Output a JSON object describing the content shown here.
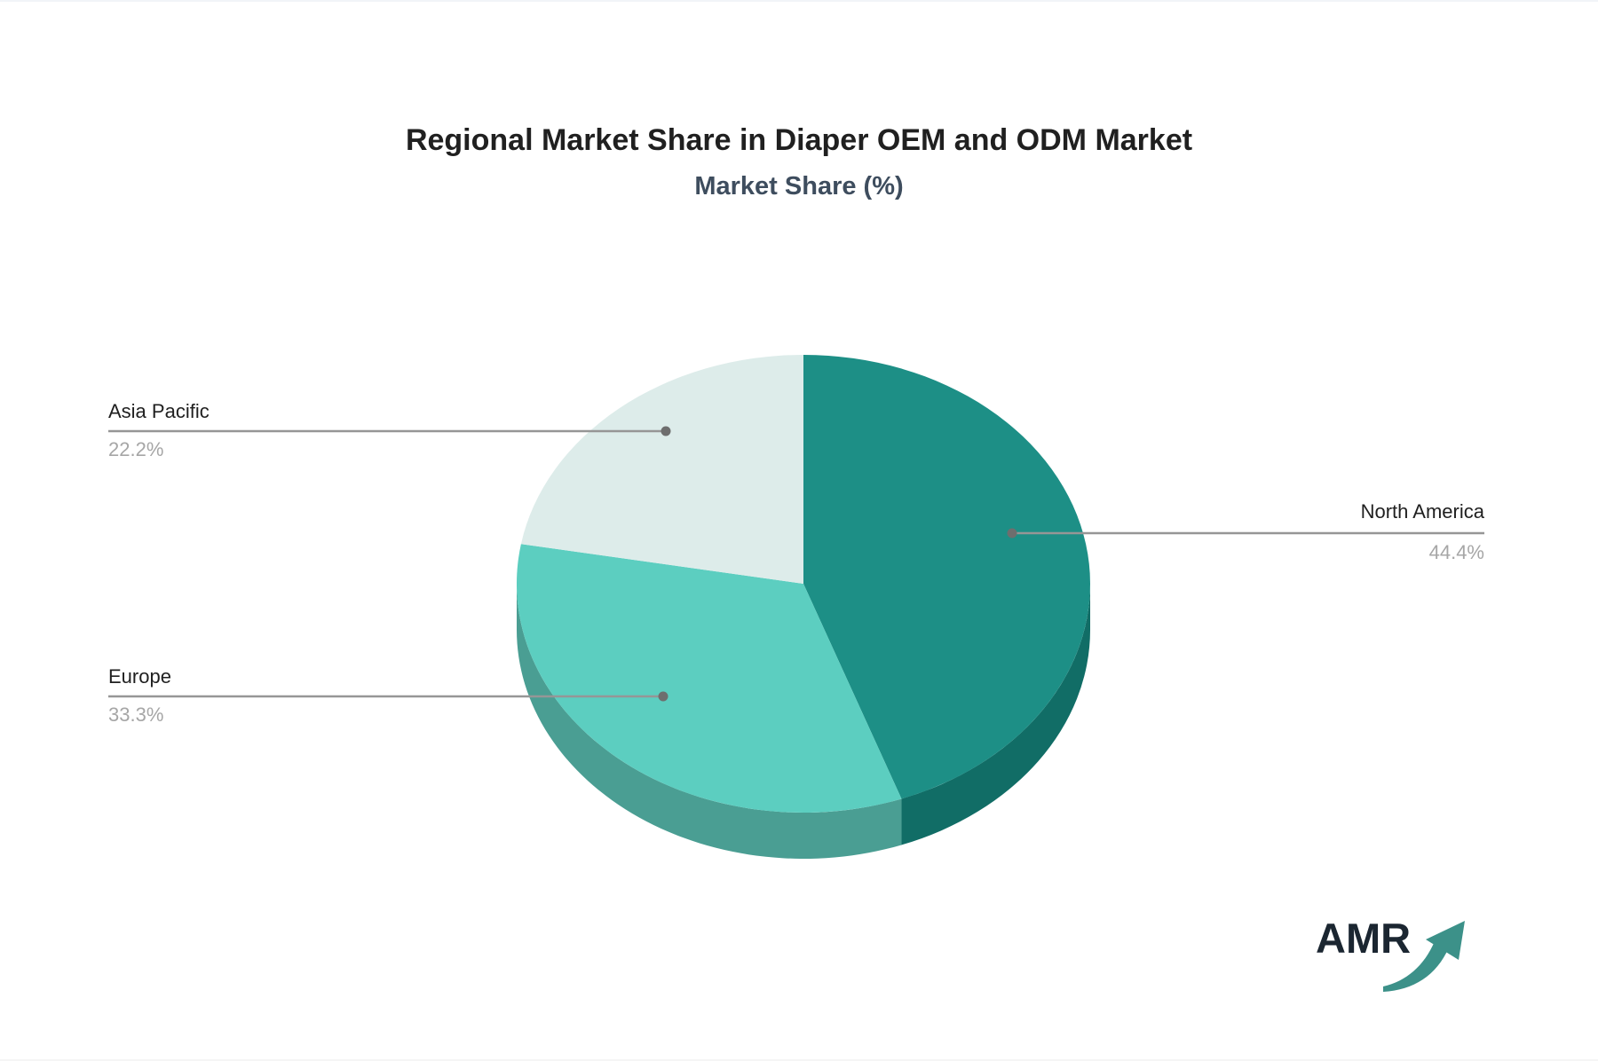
{
  "header": {
    "title": "Regional Market Share in Diaper OEM and ODM Market",
    "subtitle": "Market Share (%)"
  },
  "chart_data": {
    "type": "pie",
    "title": "Regional Market Share in Diaper OEM and ODM Market",
    "subtitle": "Market Share (%)",
    "unit": "%",
    "effect": "3d",
    "direction": "clockwise",
    "start_angle_deg": 0,
    "legend": "none",
    "series": [
      {
        "label": "North America",
        "value": 44.4,
        "pct_label": "44.4%",
        "color": "#1d8f86",
        "side_color": "#116d66"
      },
      {
        "label": "Europe",
        "value": 33.3,
        "pct_label": "33.3%",
        "color": "#5ccec0",
        "side_color": "#4a9e93"
      },
      {
        "label": "Asia Pacific",
        "value": 22.2,
        "pct_label": "22.2%",
        "color": "#ddecea",
        "side_color": "#c9dedc"
      }
    ],
    "labels_style": {
      "name_color": "#1f1f1f",
      "value_color": "#a6a6a6",
      "line_color": "#969696",
      "dot_color": "#6e6e6e"
    }
  },
  "logo": {
    "text": "AMR",
    "text_color": "#1b2631",
    "arrow_color": "#3c9189"
  }
}
